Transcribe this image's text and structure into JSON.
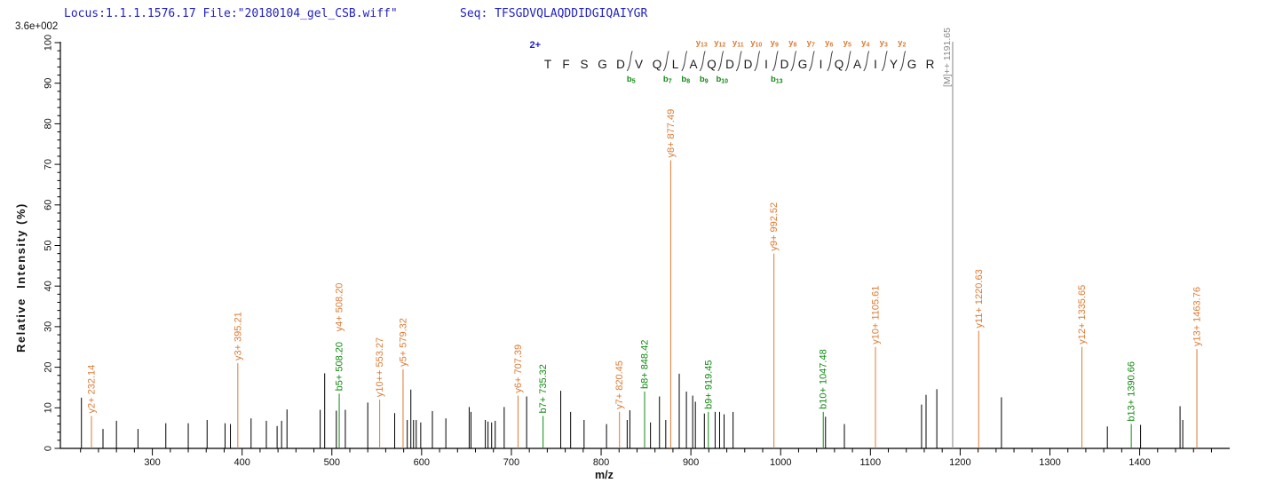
{
  "header": {
    "locus_file": "Locus:1.1.1.1576.17 File:\"20180104_gel_CSB.wiff\"",
    "seq_label": "Seq:",
    "sequence": "TFSGDVQLAQDDIDGIQAIYGR"
  },
  "colors": {
    "header_blue": "#2222c2",
    "y_ion_orange": "#dd7a33",
    "b_ion_green": "#118a11",
    "precursor_gray": "#9a9a9a",
    "peak_black": "#000000",
    "axis_black": "#000000"
  },
  "peptide": {
    "charge_label": "2+",
    "residues": "TFSGDVQLAQDDIDGIQAIYGR",
    "fragment_marks": [
      {
        "after_residue": 5,
        "b": "b5"
      },
      {
        "after_residue": 7,
        "b": "b7"
      },
      {
        "after_residue": 8,
        "b": "b8"
      },
      {
        "after_residue": 9,
        "b": "b9",
        "y": "y13"
      },
      {
        "after_residue": 10,
        "b": "b10",
        "y": "y12"
      },
      {
        "after_residue": 11,
        "y": "y11"
      },
      {
        "after_residue": 12,
        "y": "y10"
      },
      {
        "after_residue": 13,
        "b": "b13",
        "y": "y9"
      },
      {
        "after_residue": 14,
        "y": "y8"
      },
      {
        "after_residue": 15,
        "y": "y7"
      },
      {
        "after_residue": 16,
        "y": "y6"
      },
      {
        "after_residue": 17,
        "y": "y5"
      },
      {
        "after_residue": 18,
        "y": "y4"
      },
      {
        "after_residue": 19,
        "y": "y3"
      },
      {
        "after_residue": 20,
        "y": "y2"
      }
    ]
  },
  "chart_data": {
    "type": "bar",
    "title": "MS/MS fragment ion spectrum",
    "xlabel": "m/z",
    "ylabel": "Relative  Intensity (%)",
    "base_peak_intensity_label": "3.6e+002",
    "xlim": [
      200,
      1500
    ],
    "ylim": [
      0,
      100
    ],
    "x_major_ticks": [
      300,
      400,
      500,
      600,
      700,
      800,
      900,
      1000,
      1100,
      1200,
      1300,
      1400
    ],
    "x_minor_tick_step": 20,
    "y_major_tick_step": 10,
    "y_minor_tick_step": 2,
    "grid": false,
    "legend": "none",
    "precursor": {
      "label": "[M]++ 1191.65",
      "mz": 1191.65,
      "height_pct": 100
    },
    "annotated_peaks": [
      {
        "mz": 232.14,
        "intensity_pct": 8,
        "ion": "y",
        "labels": [
          "y2+ 232.14"
        ]
      },
      {
        "mz": 395.21,
        "intensity_pct": 21,
        "ion": "y",
        "labels": [
          "y3+ 395.21"
        ]
      },
      {
        "mz": 508.2,
        "intensity_pct": 13.5,
        "ion": "b",
        "labels": [
          "b5+ 508.20",
          "y4+ 508.20"
        ],
        "label_ions": [
          "b",
          "y"
        ]
      },
      {
        "mz": 553.27,
        "intensity_pct": 12,
        "ion": "y",
        "labels": [
          "y10++ 553.27"
        ]
      },
      {
        "mz": 579.32,
        "intensity_pct": 19.5,
        "ion": "y",
        "labels": [
          "y5+ 579.32"
        ]
      },
      {
        "mz": 707.39,
        "intensity_pct": 13,
        "ion": "y",
        "labels": [
          "y6+ 707.39"
        ]
      },
      {
        "mz": 735.32,
        "intensity_pct": 8,
        "ion": "b",
        "labels": [
          "b7+ 735.32"
        ]
      },
      {
        "mz": 820.45,
        "intensity_pct": 9,
        "ion": "y",
        "labels": [
          "y7+ 820.45"
        ]
      },
      {
        "mz": 848.42,
        "intensity_pct": 14,
        "ion": "b",
        "labels": [
          "b8+ 848.42"
        ]
      },
      {
        "mz": 877.49,
        "intensity_pct": 71,
        "ion": "y",
        "labels": [
          "y8+ 877.49"
        ]
      },
      {
        "mz": 919.45,
        "intensity_pct": 9,
        "ion": "b",
        "labels": [
          "b9+ 919.45"
        ]
      },
      {
        "mz": 992.52,
        "intensity_pct": 48,
        "ion": "y",
        "labels": [
          "y9+ 992.52"
        ]
      },
      {
        "mz": 1047.48,
        "intensity_pct": 9,
        "ion": "b",
        "labels": [
          "b10+ 1047.48"
        ]
      },
      {
        "mz": 1105.61,
        "intensity_pct": 25,
        "ion": "y",
        "labels": [
          "y10+ 1105.61"
        ]
      },
      {
        "mz": 1220.63,
        "intensity_pct": 29,
        "ion": "y",
        "labels": [
          "y11+ 1220.63"
        ]
      },
      {
        "mz": 1335.65,
        "intensity_pct": 25,
        "ion": "y",
        "labels": [
          "y12+ 1335.65"
        ]
      },
      {
        "mz": 1390.66,
        "intensity_pct": 6,
        "ion": "b",
        "labels": [
          "b13+ 1390.66"
        ]
      },
      {
        "mz": 1463.76,
        "intensity_pct": 24.5,
        "ion": "y",
        "labels": [
          "y13+ 1463.76"
        ]
      }
    ],
    "unlabeled_peaks": [
      [
        221,
        12.5
      ],
      [
        245,
        4.8
      ],
      [
        260,
        6.8
      ],
      [
        284,
        4.8
      ],
      [
        315,
        6.2
      ],
      [
        340,
        6.2
      ],
      [
        361,
        7
      ],
      [
        381,
        6.2
      ],
      [
        387,
        6
      ],
      [
        410,
        7.4
      ],
      [
        427,
        6.8
      ],
      [
        439,
        5.5
      ],
      [
        444,
        6.8
      ],
      [
        450,
        9.6
      ],
      [
        487,
        9.5
      ],
      [
        492,
        18.5
      ],
      [
        505,
        9.3
      ],
      [
        515,
        9.5
      ],
      [
        540,
        11.3
      ],
      [
        570,
        8.7
      ],
      [
        584,
        7
      ],
      [
        588,
        14.5
      ],
      [
        591,
        7
      ],
      [
        594,
        7
      ],
      [
        599,
        6.4
      ],
      [
        612,
        9.2
      ],
      [
        627,
        7.4
      ],
      [
        653,
        10.2
      ],
      [
        655,
        9
      ],
      [
        671,
        7
      ],
      [
        674,
        6.6
      ],
      [
        678,
        6.4
      ],
      [
        682,
        6.8
      ],
      [
        692,
        10.2
      ],
      [
        717,
        12.8
      ],
      [
        755,
        14.2
      ],
      [
        766,
        9
      ],
      [
        781,
        7
      ],
      [
        806,
        6
      ],
      [
        829,
        7
      ],
      [
        832,
        9.4
      ],
      [
        855,
        6.4
      ],
      [
        865,
        12.8
      ],
      [
        872,
        7
      ],
      [
        887,
        18.4
      ],
      [
        895,
        14
      ],
      [
        902,
        13
      ],
      [
        905,
        11.5
      ],
      [
        915,
        8.6
      ],
      [
        927,
        9
      ],
      [
        932,
        9
      ],
      [
        937,
        8.4
      ],
      [
        947,
        9
      ],
      [
        1050,
        7.8
      ],
      [
        1071,
        6
      ],
      [
        1157,
        10.8
      ],
      [
        1162,
        13.2
      ],
      [
        1174,
        14.6
      ],
      [
        1246,
        12.6
      ],
      [
        1364,
        5.4
      ],
      [
        1401,
        5.8
      ],
      [
        1445,
        10.4
      ],
      [
        1448,
        7
      ]
    ]
  }
}
